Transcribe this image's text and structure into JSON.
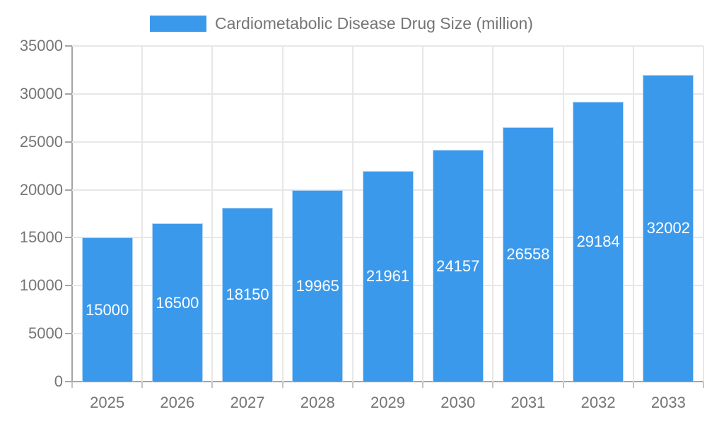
{
  "title": "Cardiometabolic Disease Drug Size (million)",
  "colors": {
    "background": "#FFFFFF",
    "bar": "#3B99EC",
    "bar_edge": "#B3D5F5",
    "bar_label": "#FFFFFF",
    "grid": "#E7E7E7",
    "axis": "#A5A5A5",
    "tick": "#C4C4C4",
    "text": "#757575"
  },
  "chart_data": {
    "type": "bar",
    "title": "Cardiometabolic Disease Drug Size (million)",
    "legend_position": "top",
    "categories": [
      "2025",
      "2026",
      "2027",
      "2028",
      "2029",
      "2030",
      "2031",
      "2032",
      "2033"
    ],
    "values": [
      15000,
      16500,
      18150,
      19965,
      21961,
      24157,
      26558,
      29184,
      32002
    ],
    "value_labels_inside_bars": true,
    "xlabel": "",
    "ylabel": "",
    "ylim": [
      0,
      35000
    ],
    "yticks": [
      0,
      5000,
      10000,
      15000,
      20000,
      25000,
      30000,
      35000
    ],
    "grid": true
  }
}
